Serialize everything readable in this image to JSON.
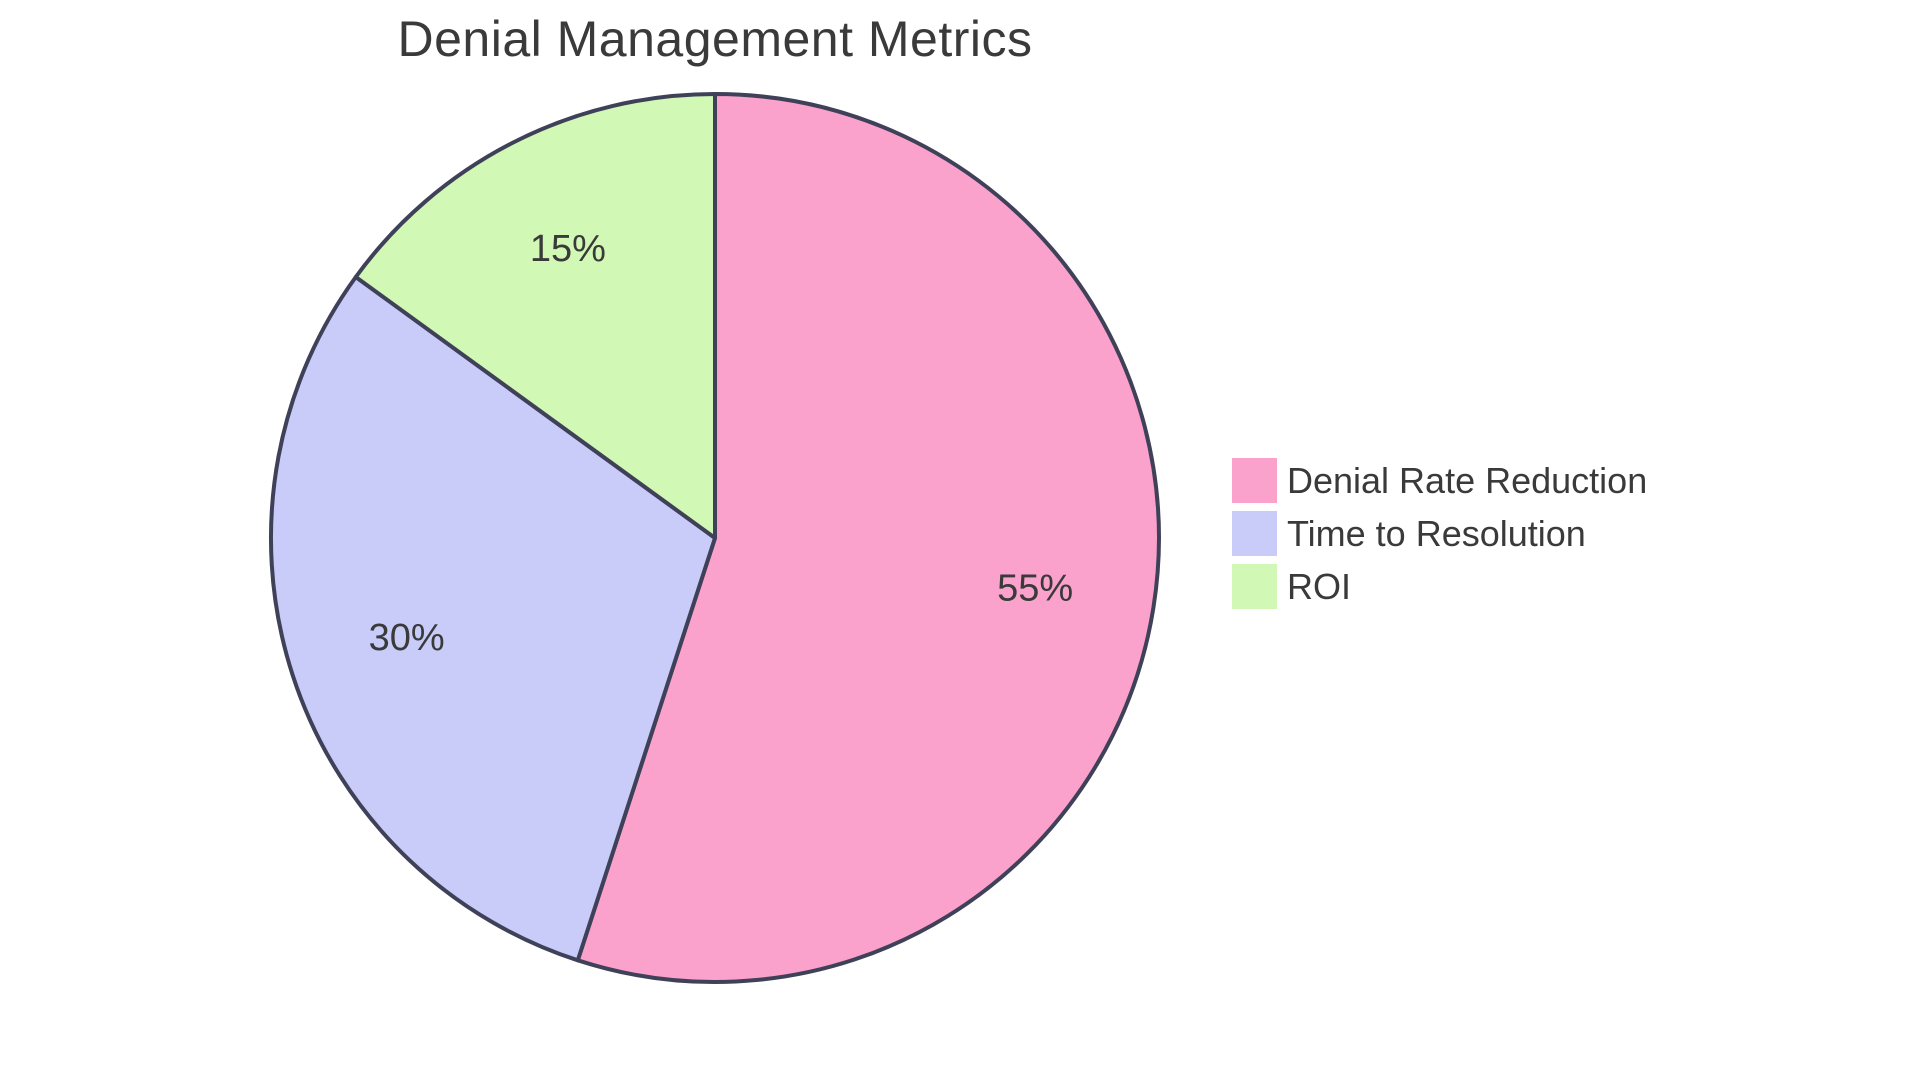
{
  "page": {
    "background": "#FFFFFF"
  },
  "chart_data": {
    "type": "pie",
    "title": "Denial Management Metrics",
    "labels": [
      "Denial Rate Reduction",
      "Time to Resolution",
      "ROI"
    ],
    "values": [
      55,
      30,
      15
    ],
    "percent_labels": [
      "55%",
      "30%",
      "15%"
    ],
    "slice_colors": [
      "#FBA2CC",
      "#C9CBF8",
      "#D2F8B5"
    ],
    "slice_border_color": "#3F4159",
    "text_color": "#3A3A3A",
    "start_angle": "12-oclock",
    "direction": "clockwise",
    "legend_position": "right"
  }
}
